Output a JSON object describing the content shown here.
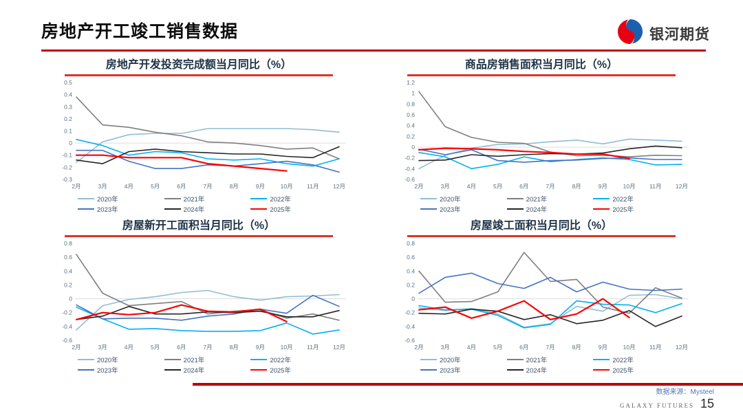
{
  "header": {
    "title": "房地产开工竣工销售数据",
    "logo_text": "银河期货"
  },
  "footer": {
    "source": "数据来源：Mysteel",
    "brand": "GALAXY FUTURES",
    "page": "15"
  },
  "palette": {
    "header_rule": "#c00000",
    "panel_rule": "#da352a",
    "series": {
      "2020年": "#8fbdd3",
      "2021年": "#7f7f7f",
      "2022年": "#00b0f0",
      "2023年": "#4472c4",
      "2024年": "#262626",
      "2025年": "#ff0000"
    }
  },
  "chart_data": [
    {
      "type": "line",
      "title": "房地产开发投资完成额当月同比（%）",
      "categories": [
        "2月",
        "3月",
        "4月",
        "5月",
        "6月",
        "7月",
        "8月",
        "9月",
        "10月",
        "11月",
        "12月"
      ],
      "ylim": [
        -0.3,
        0.5
      ],
      "yticks": [
        0.5,
        0.4,
        0.3,
        0.2,
        0.1,
        0,
        -0.1,
        -0.2,
        -0.3
      ],
      "grid": "zero-line-only",
      "legend_position": "bottom",
      "series": [
        {
          "name": "2020年",
          "values": [
            -0.16,
            0.01,
            0.07,
            0.08,
            0.08,
            0.12,
            0.12,
            0.12,
            0.12,
            0.11,
            0.09
          ]
        },
        {
          "name": "2021年",
          "values": [
            0.38,
            0.15,
            0.13,
            0.09,
            0.06,
            0.01,
            0.0,
            -0.02,
            -0.05,
            -0.04,
            -0.13
          ]
        },
        {
          "name": "2022年",
          "values": [
            0.03,
            -0.02,
            -0.1,
            -0.07,
            -0.08,
            -0.13,
            -0.14,
            -0.13,
            -0.17,
            -0.19,
            -0.13
          ]
        },
        {
          "name": "2023年",
          "values": [
            -0.06,
            -0.06,
            -0.15,
            -0.21,
            -0.21,
            -0.18,
            -0.19,
            -0.17,
            -0.15,
            -0.18,
            -0.24
          ]
        },
        {
          "name": "2024年",
          "values": [
            -0.14,
            -0.17,
            -0.07,
            -0.05,
            -0.07,
            -0.08,
            -0.09,
            -0.09,
            -0.11,
            -0.12,
            -0.03
          ]
        },
        {
          "name": "2025年",
          "values": [
            -0.1,
            -0.1,
            -0.12,
            -0.12,
            -0.12,
            -0.17,
            -0.19,
            -0.21,
            -0.23,
            null,
            null
          ]
        }
      ]
    },
    {
      "type": "line",
      "title": "商品房销售面积当月同比（%）",
      "categories": [
        "2月",
        "3月",
        "4月",
        "5月",
        "6月",
        "7月",
        "8月",
        "9月",
        "10月",
        "11月",
        "12月"
      ],
      "ylim": [
        -0.6,
        1.2
      ],
      "yticks": [
        1.2,
        1,
        0.8,
        0.6,
        0.4,
        0.2,
        0,
        -0.2,
        -0.4,
        -0.6
      ],
      "grid": "zero-line-only",
      "legend_position": "bottom",
      "series": [
        {
          "name": "2020年",
          "values": [
            -0.4,
            -0.15,
            -0.02,
            0.05,
            0.06,
            0.1,
            0.13,
            0.06,
            0.15,
            0.13,
            0.11
          ]
        },
        {
          "name": "2021年",
          "values": [
            1.03,
            0.38,
            0.18,
            0.09,
            0.07,
            -0.09,
            -0.16,
            -0.15,
            -0.18,
            -0.15,
            -0.16
          ]
        },
        {
          "name": "2022年",
          "values": [
            -0.1,
            -0.18,
            -0.4,
            -0.32,
            -0.18,
            -0.27,
            -0.23,
            -0.2,
            -0.23,
            -0.33,
            -0.32
          ]
        },
        {
          "name": "2023年",
          "values": [
            -0.04,
            -0.14,
            -0.05,
            -0.25,
            -0.28,
            -0.25,
            -0.24,
            -0.21,
            -0.2,
            -0.23,
            -0.23
          ]
        },
        {
          "name": "2024年",
          "values": [
            -0.25,
            -0.24,
            -0.14,
            -0.17,
            -0.14,
            -0.12,
            -0.13,
            -0.11,
            -0.03,
            0.02,
            -0.01
          ]
        },
        {
          "name": "2025年",
          "values": [
            -0.05,
            -0.02,
            -0.03,
            -0.05,
            -0.08,
            -0.1,
            -0.13,
            -0.13,
            -0.21,
            null,
            null
          ]
        }
      ]
    },
    {
      "type": "line",
      "title": "房屋新开工面积当月同比（%）",
      "categories": [
        "2月",
        "3月",
        "4月",
        "5月",
        "6月",
        "7月",
        "8月",
        "9月",
        "10月",
        "11月",
        "12月"
      ],
      "ylim": [
        -0.6,
        0.8
      ],
      "yticks": [
        0.8,
        0.6,
        0.4,
        0.2,
        0,
        -0.2,
        -0.4,
        -0.6
      ],
      "grid": "zero-line-only",
      "legend_position": "bottom",
      "series": [
        {
          "name": "2020年",
          "values": [
            -0.45,
            -0.1,
            -0.01,
            0.03,
            0.09,
            0.12,
            0.03,
            -0.02,
            0.03,
            0.04,
            0.06
          ]
        },
        {
          "name": "2021年",
          "values": [
            0.64,
            0.08,
            -0.1,
            -0.07,
            -0.04,
            -0.22,
            -0.18,
            -0.16,
            -0.28,
            -0.22,
            -0.31
          ]
        },
        {
          "name": "2022年",
          "values": [
            -0.12,
            -0.29,
            -0.44,
            -0.43,
            -0.46,
            -0.47,
            -0.47,
            -0.46,
            -0.35,
            -0.51,
            -0.45
          ]
        },
        {
          "name": "2023年",
          "values": [
            -0.09,
            -0.29,
            -0.28,
            -0.28,
            -0.31,
            -0.25,
            -0.22,
            -0.15,
            -0.21,
            0.05,
            -0.11
          ]
        },
        {
          "name": "2024年",
          "values": [
            -0.3,
            -0.25,
            -0.11,
            -0.22,
            -0.22,
            -0.19,
            -0.2,
            -0.18,
            -0.26,
            -0.26,
            -0.17
          ]
        },
        {
          "name": "2025年",
          "values": [
            -0.3,
            -0.2,
            -0.23,
            -0.2,
            -0.09,
            -0.18,
            -0.19,
            -0.15,
            -0.33,
            null,
            null
          ]
        }
      ]
    },
    {
      "type": "line",
      "title": "房屋竣工面积当月同比（%）",
      "categories": [
        "2月",
        "3月",
        "4月",
        "5月",
        "6月",
        "7月",
        "8月",
        "9月",
        "10月",
        "11月",
        "12月"
      ],
      "ylim": [
        -0.6,
        0.8
      ],
      "yticks": [
        0.8,
        0.6,
        0.4,
        0.2,
        0,
        -0.2,
        -0.4,
        -0.6
      ],
      "grid": "zero-line-only",
      "legend_position": "bottom",
      "series": [
        {
          "name": "2020年",
          "values": [
            -0.13,
            -0.17,
            -0.14,
            -0.22,
            -0.41,
            -0.36,
            -0.11,
            -0.18,
            0.05,
            0.06,
            0.0
          ]
        },
        {
          "name": "2021年",
          "values": [
            0.4,
            -0.05,
            -0.04,
            0.1,
            0.67,
            0.25,
            0.28,
            -0.12,
            -0.21,
            0.16,
            0.01
          ]
        },
        {
          "name": "2022年",
          "values": [
            -0.1,
            -0.16,
            -0.15,
            -0.24,
            -0.42,
            -0.37,
            -0.03,
            -0.08,
            -0.09,
            -0.2,
            -0.07
          ]
        },
        {
          "name": "2023年",
          "values": [
            0.08,
            0.31,
            0.37,
            0.22,
            0.15,
            0.31,
            0.1,
            0.24,
            0.14,
            0.12,
            0.14
          ]
        },
        {
          "name": "2024年",
          "values": [
            -0.21,
            -0.22,
            -0.15,
            -0.18,
            -0.3,
            -0.23,
            -0.36,
            -0.31,
            -0.17,
            -0.4,
            -0.25
          ]
        },
        {
          "name": "2025年",
          "values": [
            -0.16,
            -0.12,
            -0.28,
            -0.18,
            -0.03,
            -0.3,
            -0.22,
            0.0,
            -0.27,
            null,
            null
          ]
        }
      ]
    }
  ]
}
